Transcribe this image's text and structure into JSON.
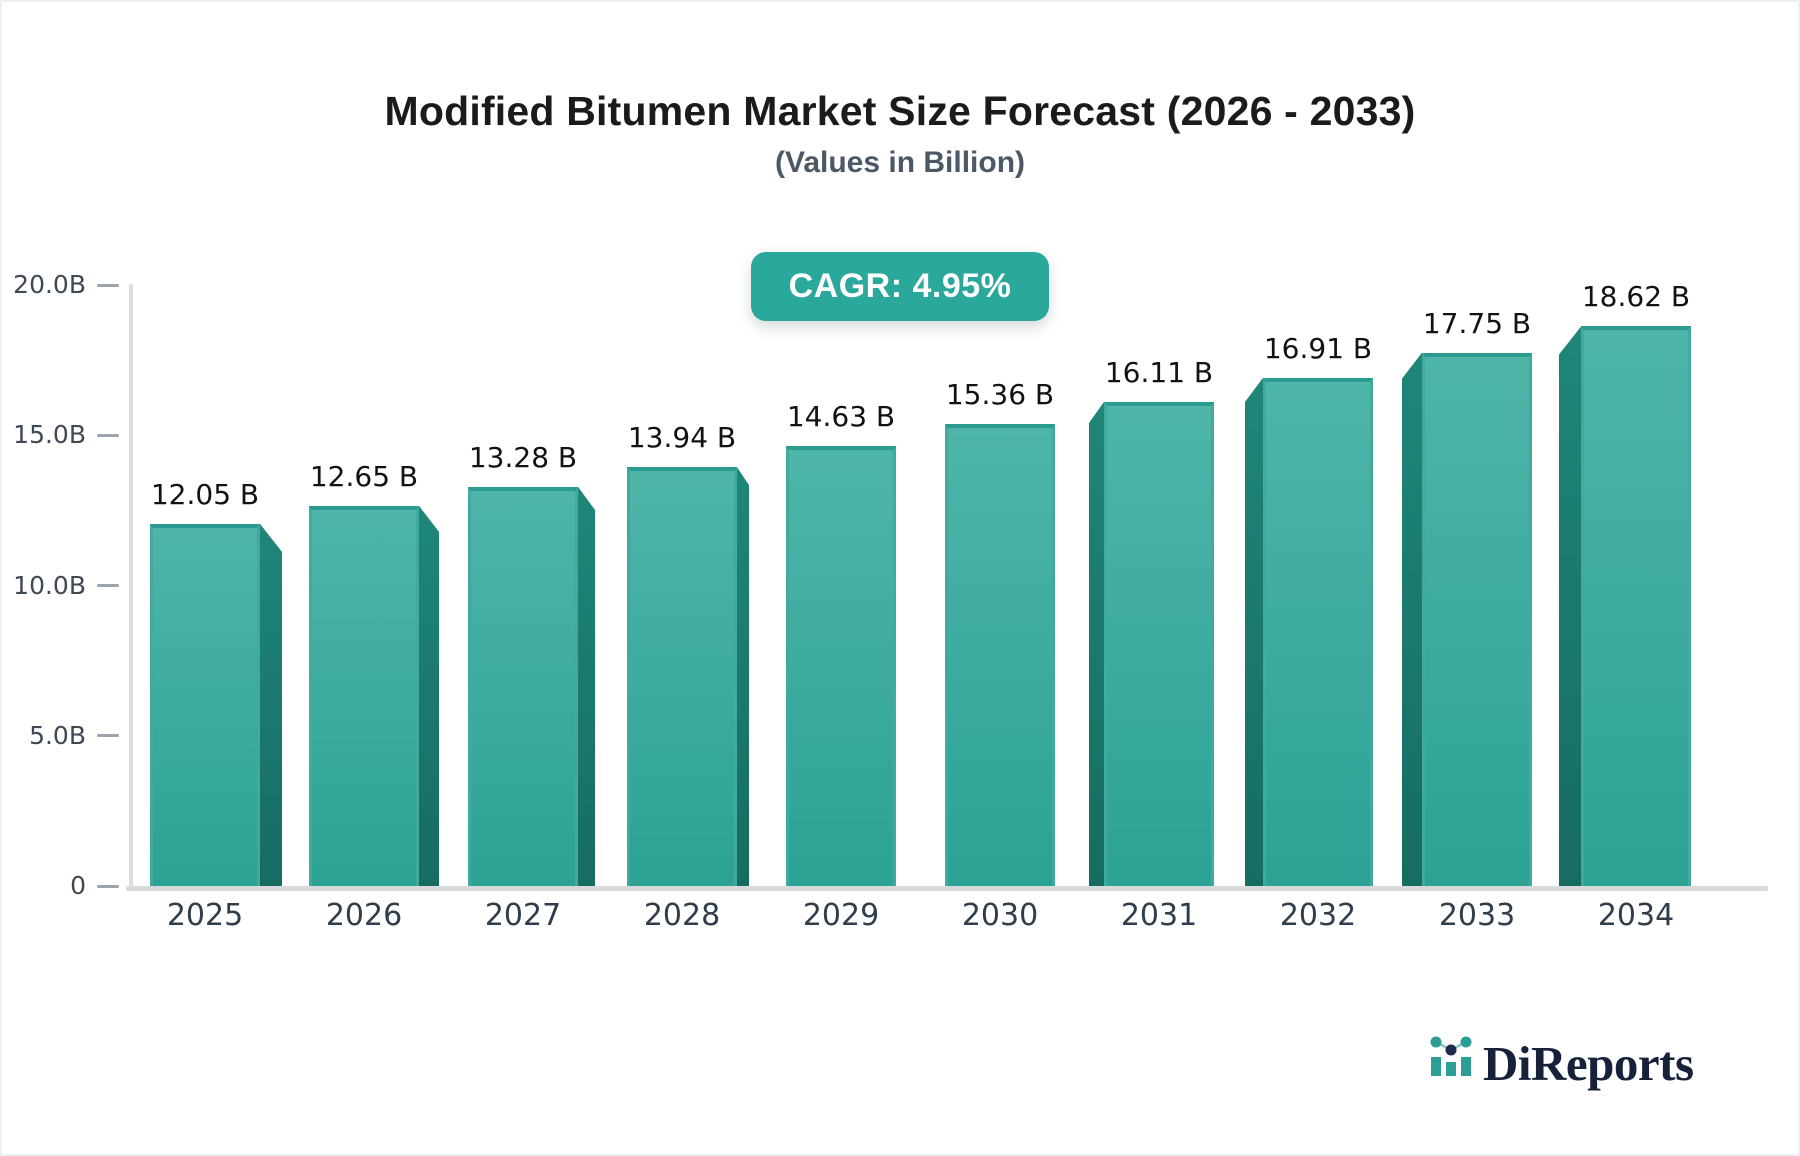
{
  "header": {
    "title": "Modified Bitumen Market Size Forecast (2026 - 2033)",
    "subtitle": "(Values in Billion)"
  },
  "badge": {
    "label": "CAGR: 4.95%"
  },
  "chart_data": {
    "type": "bar",
    "title": "Modified Bitumen Market Size Forecast (2026 - 2033)",
    "subtitle": "(Values in Billion)",
    "unit": "Billion",
    "categories": [
      "2025",
      "2026",
      "2027",
      "2028",
      "2029",
      "2030",
      "2031",
      "2032",
      "2033",
      "2034"
    ],
    "values": [
      12.05,
      12.65,
      13.28,
      13.94,
      14.63,
      15.36,
      16.11,
      16.91,
      17.75,
      18.62
    ],
    "value_labels": [
      "12.05 B",
      "12.65 B",
      "13.28 B",
      "13.94 B",
      "14.63 B",
      "15.36 B",
      "16.11 B",
      "16.91 B",
      "17.75 B",
      "18.62 B"
    ],
    "annotations": [
      "CAGR: 4.95%"
    ],
    "xlabel": "",
    "ylabel": "",
    "ylim": [
      0,
      20
    ],
    "y_ticks": [
      {
        "value": 0,
        "label": "0"
      },
      {
        "value": 5,
        "label": "5.0B"
      },
      {
        "value": 10,
        "label": "10.0B"
      },
      {
        "value": 15,
        "label": "15.0B"
      },
      {
        "value": 20,
        "label": "20.0B"
      }
    ],
    "grid": false,
    "legend": false,
    "bar_style": "3d-beveled"
  },
  "colors": {
    "bar_face_top": "#4FB5A9",
    "bar_face_bottom": "#2BA294",
    "bar_edge_top": "#2B9B8F",
    "bar_edge_side": "#3FAA9D",
    "bar_bevel_top": "#1F8679",
    "bar_bevel_bottom": "#176C61",
    "badge_bg": "#2AA89B",
    "badge_text": "#FFFFFF",
    "axis_line": "#DADCDE",
    "baseline": "#D8DADC",
    "tick_mark": "#9BA3AC",
    "tick_label": "#3E4956",
    "category_label": "#303D4D",
    "value_label": "#101214",
    "title_text": "#1B1B1D",
    "subtitle_text": "#4C5866",
    "logo_navy": "#17213A",
    "logo_teal": "#2D9E96",
    "logo_link_line": "#8AC6BF"
  },
  "logo": {
    "text": "DiReports",
    "icon": "mini-bar-line-chart-icon"
  }
}
